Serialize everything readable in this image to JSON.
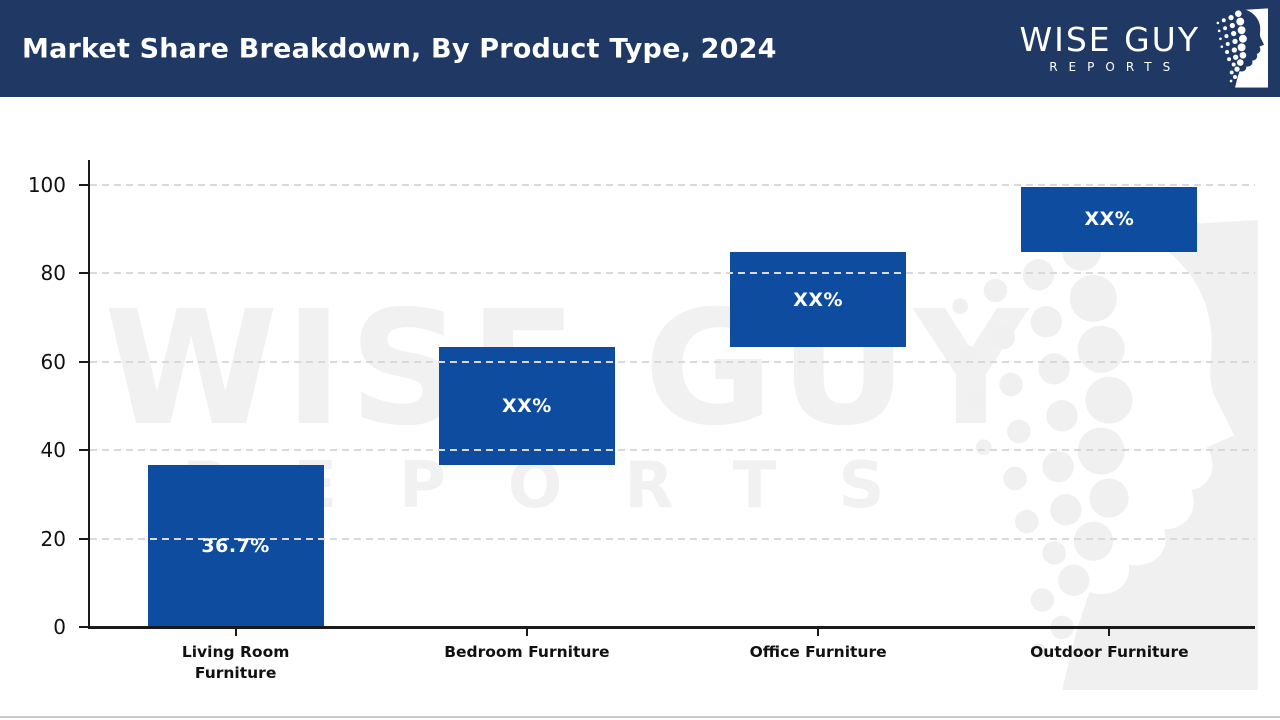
{
  "header": {
    "title": "Market Share Breakdown, By Product Type, 2024",
    "bg_color": "#1f3864",
    "logo": {
      "primary": "WISE GUY",
      "secondary": "REPORTS"
    }
  },
  "watermark": {
    "primary": "WISE GUY",
    "secondary": "REPORTS"
  },
  "chart_data": {
    "type": "bar",
    "subtype": "floating-segment-waterfall",
    "title": "Market Share Breakdown, By Product Type, 2024",
    "xlabel": "",
    "ylabel": "",
    "categories": [
      "Living Room\nFurniture",
      "Bedroom Furniture",
      "Office Furniture",
      "Outdoor Furniture"
    ],
    "segments": [
      {
        "category": "Living Room Furniture",
        "start": 0,
        "end": 36.7,
        "label": "36.7%"
      },
      {
        "category": "Bedroom Furniture",
        "start": 36.7,
        "end": 63.3,
        "label": "XX%"
      },
      {
        "category": "Office Furniture",
        "start": 63.3,
        "end": 84.9,
        "label": "XX%"
      },
      {
        "category": "Outdoor Furniture",
        "start": 84.9,
        "end": 99.6,
        "label": "XX%"
      }
    ],
    "yticks": [
      0,
      20,
      40,
      60,
      80,
      100
    ],
    "ylim": [
      0,
      105
    ],
    "grid": "dashed horizontal, drawn above bars",
    "legend": "none",
    "colors": {
      "bar": "#0d4c9e",
      "bar_label": "#ffffff",
      "grid": "#d9d9d9",
      "axis": "#1a1a1a",
      "tick_label": "#111111",
      "watermark": "#f1f1f1",
      "header_bg": "#1f3864",
      "footer_rule": "#c9c9c9"
    }
  }
}
